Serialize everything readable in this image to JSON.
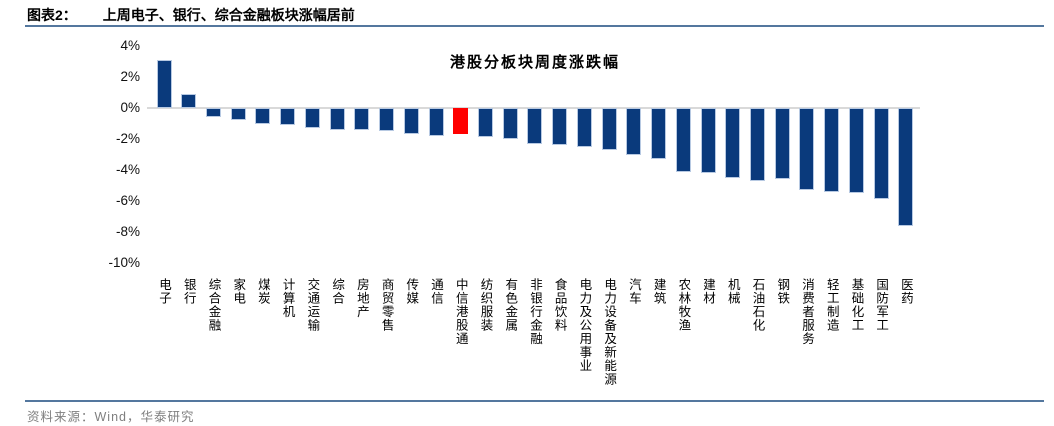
{
  "figure": {
    "label": "图表2：",
    "title": "上周电子、银行、综合金融板块涨幅居前",
    "source": "资料来源：Wind，华泰研究"
  },
  "chart_data": {
    "type": "bar",
    "title": "港股分板块周度涨跌幅",
    "categories": [
      "电子",
      "银行",
      "综合金融",
      "家电",
      "煤炭",
      "计算机",
      "交通运输",
      "综合",
      "房地产",
      "商贸零售",
      "传媒",
      "通信",
      "中信港股通",
      "纺织服装",
      "有色金属",
      "非银行金融",
      "食品饮料",
      "电力及公用事业",
      "电力设备及新能源",
      "汽车",
      "建筑",
      "农林牧渔",
      "建材",
      "机械",
      "石油石化",
      "钢铁",
      "消费者服务",
      "轻工制造",
      "基础化工",
      "国防军工",
      "医药"
    ],
    "values": [
      3.1,
      0.9,
      -0.6,
      -0.8,
      -1.0,
      -1.1,
      -1.3,
      -1.4,
      -1.4,
      -1.5,
      -1.7,
      -1.8,
      -1.7,
      -1.9,
      -2.0,
      -2.3,
      -2.4,
      -2.5,
      -2.7,
      -3.0,
      -3.3,
      -4.1,
      -4.2,
      -4.5,
      -4.7,
      -4.6,
      -5.3,
      -5.4,
      -5.5,
      -5.9,
      -7.6
    ],
    "unit": "%",
    "highlight_category": "中信港股通",
    "highlight_index": 12,
    "bar_color": "#0a3a7c",
    "highlight_color": "#ff0000",
    "ytick_labels": [
      "4%",
      "2%",
      "0%",
      "-2%",
      "-4%",
      "-6%",
      "-8%",
      "-10%"
    ],
    "yticks": [
      4,
      2,
      0,
      -2,
      -4,
      -6,
      -8,
      -10
    ],
    "ylim": [
      -10,
      4
    ],
    "grid": false,
    "legend": "none"
  },
  "colors": {
    "rule": "#54779e",
    "axis_line": "#d9d9d9",
    "source_text": "#7f7f7f"
  }
}
